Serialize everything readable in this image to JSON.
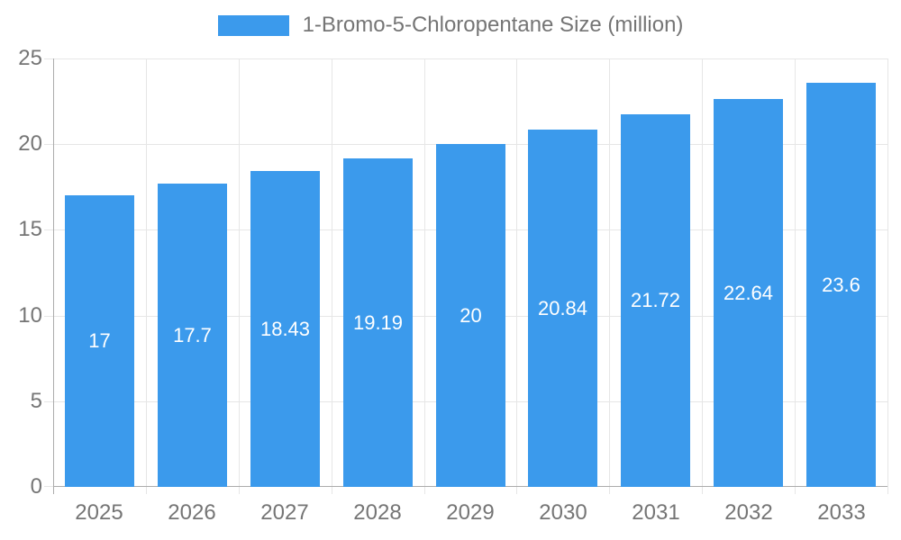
{
  "chart_data": {
    "type": "bar",
    "title": "1-Bromo-5-Chloropentane Size (million)",
    "series_name": "1-Bromo-5-Chloropentane Size (million)",
    "categories": [
      "2025",
      "2026",
      "2027",
      "2028",
      "2029",
      "2030",
      "2031",
      "2032",
      "2033"
    ],
    "values": [
      17,
      17.7,
      18.43,
      19.19,
      20,
      20.84,
      21.72,
      22.64,
      23.6
    ],
    "value_labels": [
      "17",
      "17.7",
      "18.43",
      "19.19",
      "20",
      "20.84",
      "21.72",
      "22.64",
      "23.6"
    ],
    "xlabel": "",
    "ylabel": "",
    "ylim": [
      0,
      25
    ],
    "yticks": [
      0,
      5,
      10,
      15,
      20,
      25
    ],
    "grid": true,
    "legend_position": "top",
    "colors": {
      "bar": "#3b9aec",
      "bar_label": "#ffffff",
      "axis_text": "#757575",
      "legend_text": "#757575",
      "gridline": "#e6e6e6",
      "axis_line": "#acacac",
      "background": "#ffffff"
    }
  }
}
